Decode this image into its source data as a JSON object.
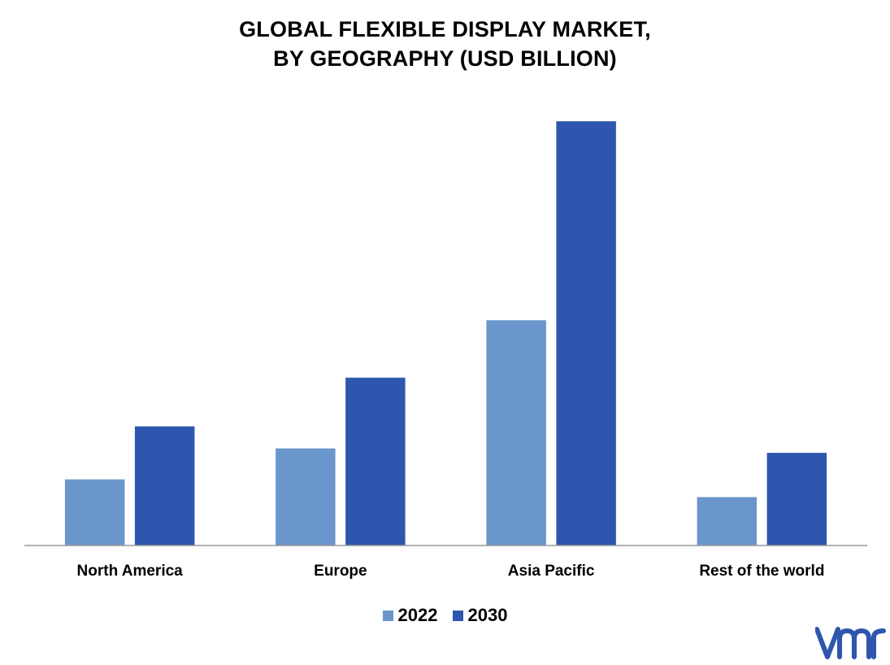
{
  "chart_data": {
    "type": "bar",
    "title_lines": [
      "GLOBAL FLEXIBLE DISPLAY MARKET,",
      "BY GEOGRAPHY (USD BILLION)"
    ],
    "categories": [
      "North America",
      "Europe",
      "Asia Pacific",
      "Rest of the world"
    ],
    "series": [
      {
        "name": "2022",
        "values": [
          15,
          22,
          51,
          11
        ],
        "color": "#6A96CB"
      },
      {
        "name": "2030",
        "values": [
          27,
          38,
          96,
          21
        ],
        "color": "#2E56AE"
      }
    ],
    "ylim": [
      0,
      105
    ],
    "xlabel": "",
    "ylabel": "",
    "grid": false,
    "legend_position": "bottom"
  },
  "logo": {
    "icon": "vmr-logo-icon",
    "color": "#2E56AE"
  }
}
